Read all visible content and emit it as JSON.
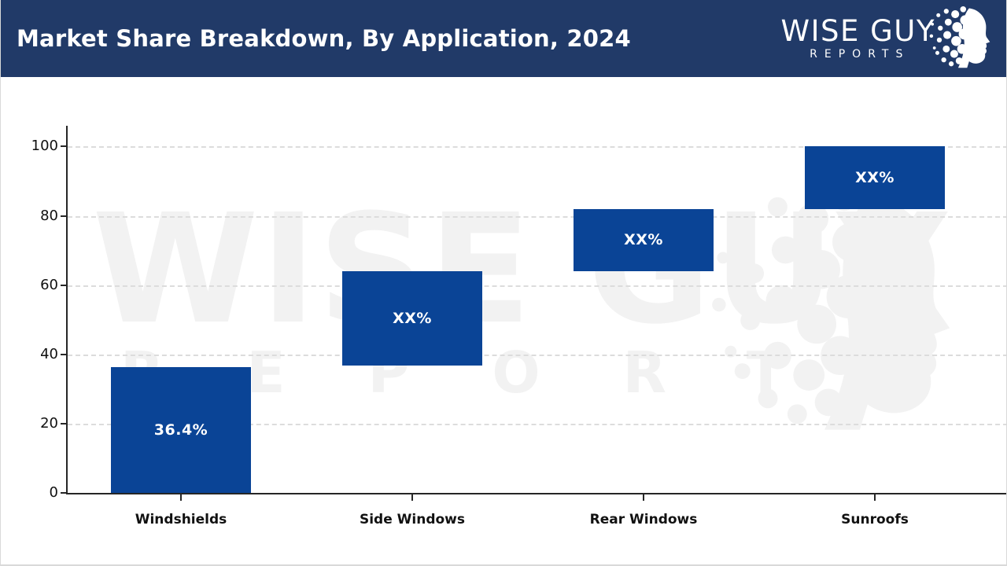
{
  "header": {
    "title": "Market Share Breakdown, By Application, 2024",
    "logo": {
      "wordmark": "WISE GUY",
      "subtext": "REPORTS"
    }
  },
  "watermark": {
    "wordmark": "WISE GUY",
    "subtext": "REPORTS"
  },
  "colors": {
    "header_bg": "#213a68",
    "bar": "#0a4496",
    "gridline": "#dcdcdc",
    "axis": "#262626",
    "watermark": "#f2f2f2",
    "page_border": "#d9d9d9"
  },
  "chart_data": {
    "type": "bar",
    "subtype": "waterfall",
    "title": "Market Share Breakdown, By Application, 2024",
    "xlabel": "",
    "ylabel": "",
    "categories": [
      "Windshields",
      "Side Windows",
      "Rear Windows",
      "Sunroofs"
    ],
    "bars": [
      {
        "category": "Windshields",
        "start": 0,
        "end": 36.4,
        "label": "36.4%"
      },
      {
        "category": "Side Windows",
        "start": 36.8,
        "end": 64.0,
        "label": "XX%"
      },
      {
        "category": "Rear Windows",
        "start": 64.0,
        "end": 82.0,
        "label": "XX%"
      },
      {
        "category": "Sunroofs",
        "start": 82.0,
        "end": 100.0,
        "label": "XX%"
      }
    ],
    "yticks": [
      0,
      20,
      40,
      60,
      80,
      100
    ],
    "ylim": [
      0,
      106
    ],
    "grid": "horizontal-dashed",
    "legend": "none"
  }
}
